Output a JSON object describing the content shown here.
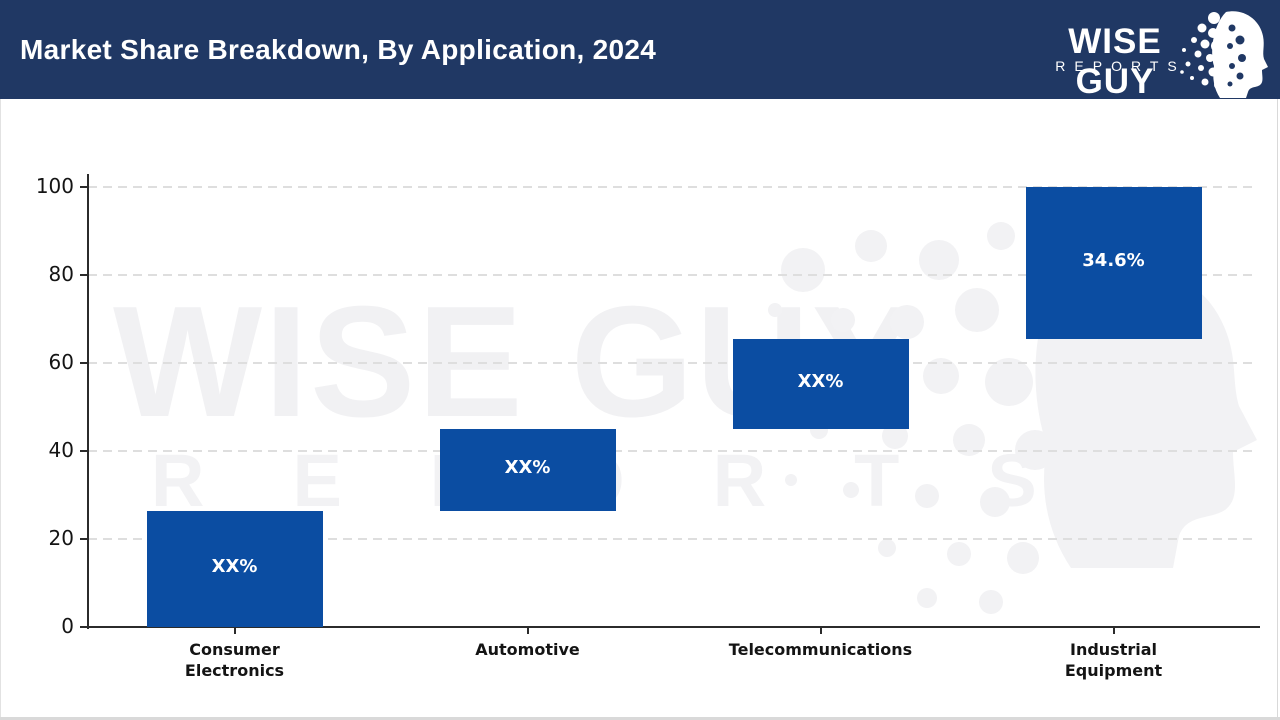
{
  "header": {
    "title": "Market Share Breakdown, By Application, 2024",
    "logo": {
      "line1": "WISE GUY",
      "line2": "REPORTS"
    },
    "bg_color": "#203864"
  },
  "watermark": {
    "line1": "WISE GUY",
    "line2": "REPORTS"
  },
  "chart_data": {
    "type": "bar",
    "variant": "floating-waterfall",
    "title": "Market Share Breakdown, By Application, 2024",
    "categories": [
      [
        "Consumer",
        "Electronics"
      ],
      [
        "Automotive"
      ],
      [
        "Telecommunications"
      ],
      [
        "Industrial",
        "Equipment"
      ]
    ],
    "bars": [
      {
        "category": "Consumer Electronics",
        "start": 0,
        "end": 26.4,
        "label": "XX%"
      },
      {
        "category": "Automotive",
        "start": 26.4,
        "end": 45.0,
        "label": "XX%"
      },
      {
        "category": "Telecommunications",
        "start": 45.0,
        "end": 65.4,
        "label": "XX%"
      },
      {
        "category": "Industrial Equipment",
        "start": 65.4,
        "end": 100,
        "label": "34.6%"
      }
    ],
    "yticks": [
      0,
      20,
      40,
      60,
      80,
      100
    ],
    "ylim": [
      0,
      103
    ],
    "bar_color": "#0b4da2",
    "grid": "horizontal-dashed",
    "legend": "none",
    "xlabel": "",
    "ylabel": ""
  }
}
